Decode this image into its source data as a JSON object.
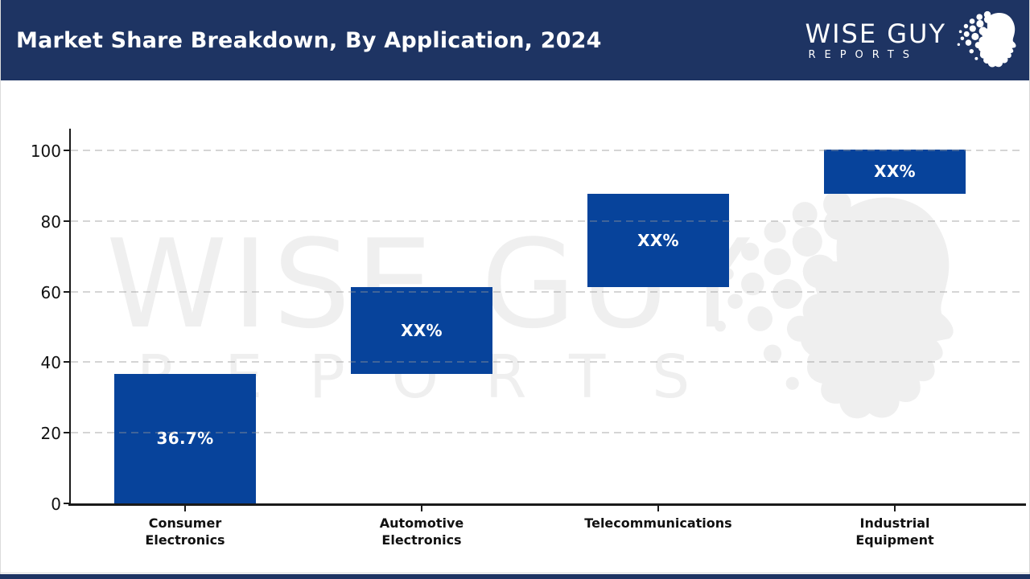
{
  "colors": {
    "header_bg": "#1e3463",
    "bar_blue": "#07439b",
    "grid_gray": "#dadada",
    "watermark_gray": "#efefef",
    "bar_label_white": "#ffffff"
  },
  "header": {
    "title": "Market Share Breakdown, By Application, 2024",
    "logo": {
      "line1": "WISE GUY",
      "line2": "REPORTS"
    }
  },
  "watermark": {
    "line1": "WISE GUY",
    "line2": "REPORTS"
  },
  "chart_data": {
    "type": "bar",
    "subtype": "floating-waterfall",
    "title": "Market Share Breakdown, By Application, 2024",
    "categories": [
      "Consumer\nElectronics",
      "Automotive\nElectronics",
      "Telecommunications",
      "Industrial\nEquipment"
    ],
    "series": [
      {
        "name": "Market share (%)",
        "segments": [
          {
            "category": "Consumer Electronics",
            "start": 0,
            "end": 36.7,
            "label": "36.7%"
          },
          {
            "category": "Automotive Electronics",
            "start": 36.7,
            "end": 61.3,
            "label": "XX%"
          },
          {
            "category": "Telecommunications",
            "start": 61.3,
            "end": 87.8,
            "label": "XX%"
          },
          {
            "category": "Industrial Equipment",
            "start": 87.8,
            "end": 100.3,
            "label": "XX%"
          }
        ]
      }
    ],
    "yticks": [
      0,
      20,
      40,
      60,
      80,
      100
    ],
    "ylim": [
      0,
      106
    ],
    "xlabel": "",
    "ylabel": "",
    "legend": "none",
    "grid": {
      "axis": "y",
      "style": "dashed"
    }
  }
}
